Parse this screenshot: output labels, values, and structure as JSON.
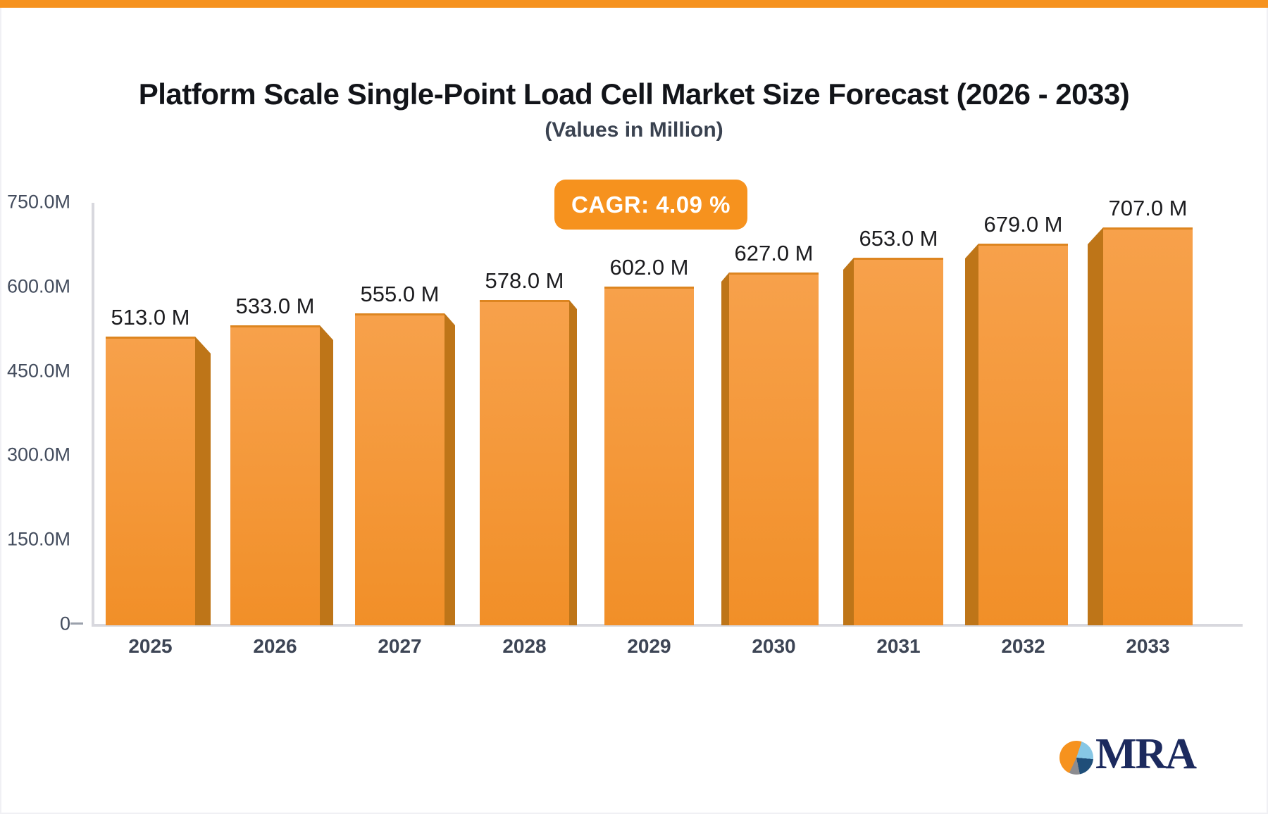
{
  "page": {
    "top_strip_color": "#f6921e",
    "background": "#ffffff"
  },
  "header": {
    "title": "Platform Scale Single-Point Load Cell Market Size Forecast (2026 - 2033)",
    "subtitle": "(Values in Million)"
  },
  "badge": {
    "label": "CAGR: 4.09 %",
    "bg": "#f6921e",
    "text_color": "#ffffff"
  },
  "chart_data": {
    "type": "bar",
    "title": "Platform Scale Single-Point Load Cell Market Size Forecast (2026 - 2033)",
    "subtitle": "(Values in Million)",
    "categories": [
      "2025",
      "2026",
      "2027",
      "2028",
      "2029",
      "2030",
      "2031",
      "2032",
      "2033"
    ],
    "values": [
      513,
      533,
      555,
      578,
      602,
      627,
      653,
      679,
      707
    ],
    "value_labels": [
      "513.0 M",
      "533.0 M",
      "555.0 M",
      "578.0 M",
      "602.0 M",
      "627.0 M",
      "653.0 M",
      "679.0 M",
      "707.0 M"
    ],
    "unit": "Million",
    "xlabel": "",
    "ylabel": "",
    "ylim": [
      0,
      750
    ],
    "yticks": [
      0,
      150,
      300,
      450,
      600,
      750
    ],
    "ytick_labels": [
      "0",
      "150.0M",
      "300.0M",
      "450.0M",
      "600.0M",
      "750.0M"
    ],
    "grid": false,
    "legend": false,
    "cagr": "4.09 %",
    "bar_face_top_color": "#f7a14b",
    "bar_face_bottom_color": "#f18f28",
    "bar_top_edge_color": "#dd8520",
    "bar_side_color": "#be7518",
    "axis_color": "#d8d8de",
    "tick_label_color": "#434c5d"
  },
  "logo": {
    "text": "MRA",
    "pie_orange": "#f6921e",
    "pie_light_blue": "#87c7e5",
    "pie_navy": "#1f4e79",
    "pie_gray": "#8c8c90",
    "text_color": "#1c2a5e"
  }
}
